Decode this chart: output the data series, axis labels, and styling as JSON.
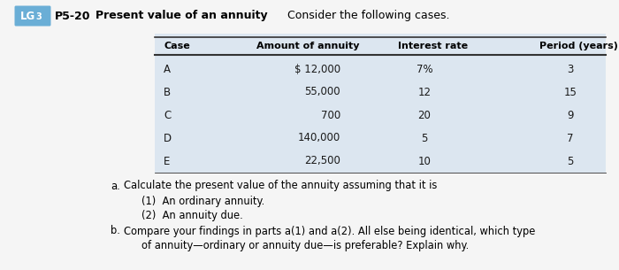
{
  "title_lg": "LG",
  "title_lg_num": "3",
  "title_code": "P5-20",
  "title_desc": "Present value of an annuity",
  "title_sub": "Consider the following cases.",
  "table_headers": [
    "Case",
    "Amount of annuity",
    "Interest rate",
    "Period (years)"
  ],
  "table_rows": [
    [
      "A",
      "$ 12,000",
      "7%",
      "3"
    ],
    [
      "B",
      "55,000",
      "12",
      "15"
    ],
    [
      "C",
      "700",
      "20",
      "9"
    ],
    [
      "D",
      "140,000",
      "5",
      "7"
    ],
    [
      "E",
      "22,500",
      "10",
      "5"
    ]
  ],
  "q_a_prefix": "a.",
  "q_a_text": "  Calculate the present value of the annuity assuming that it is",
  "q_a1": "    (1)  An ordinary annuity.",
  "q_a2": "    (2)  An annuity due.",
  "q_b_prefix": "b.",
  "q_b_text": "  Compare your findings in parts a(1) and a(2). All else being identical, which type",
  "q_b2": "       of annuity—ordinary or annuity due—is preferable? Explain why.",
  "page_bg": "#f5f5f5",
  "table_bg": "#dce6f0",
  "lg_box_color": "#6aaed6",
  "text_color": "#1a1a1a",
  "bold_color": "#000000"
}
